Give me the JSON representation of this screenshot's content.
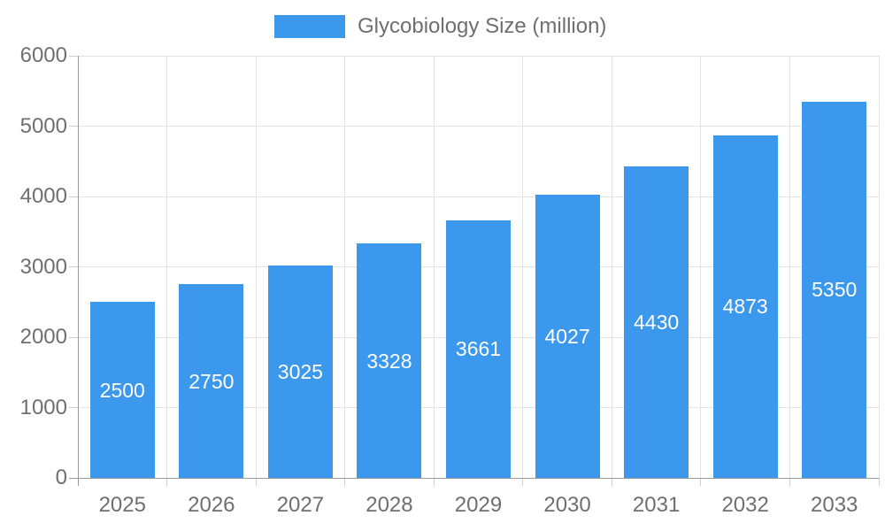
{
  "chart_data": {
    "type": "bar",
    "title": "",
    "legend": {
      "label": "Glycobiology Size (million)",
      "position": "top"
    },
    "categories": [
      "2025",
      "2026",
      "2027",
      "2028",
      "2029",
      "2030",
      "2031",
      "2032",
      "2033"
    ],
    "series": [
      {
        "name": "Glycobiology Size (million)",
        "values": [
          2500,
          2750,
          3025,
          3328,
          3661,
          4027,
          4430,
          4873,
          5350
        ]
      }
    ],
    "xlabel": "",
    "ylabel": "",
    "ylim": [
      0,
      6000
    ],
    "yticks": [
      0,
      1000,
      2000,
      3000,
      4000,
      5000,
      6000
    ],
    "grid": true,
    "bar_value_labels_visible": true,
    "colors": {
      "bar": "#3b98ec",
      "grid": "#e3e3e3",
      "axis": "#9b9b9b",
      "tick": "#cfcfcf",
      "axis_text": "#6f6f6f",
      "bar_label_text": "#ffffff",
      "background": "#ffffff"
    }
  }
}
